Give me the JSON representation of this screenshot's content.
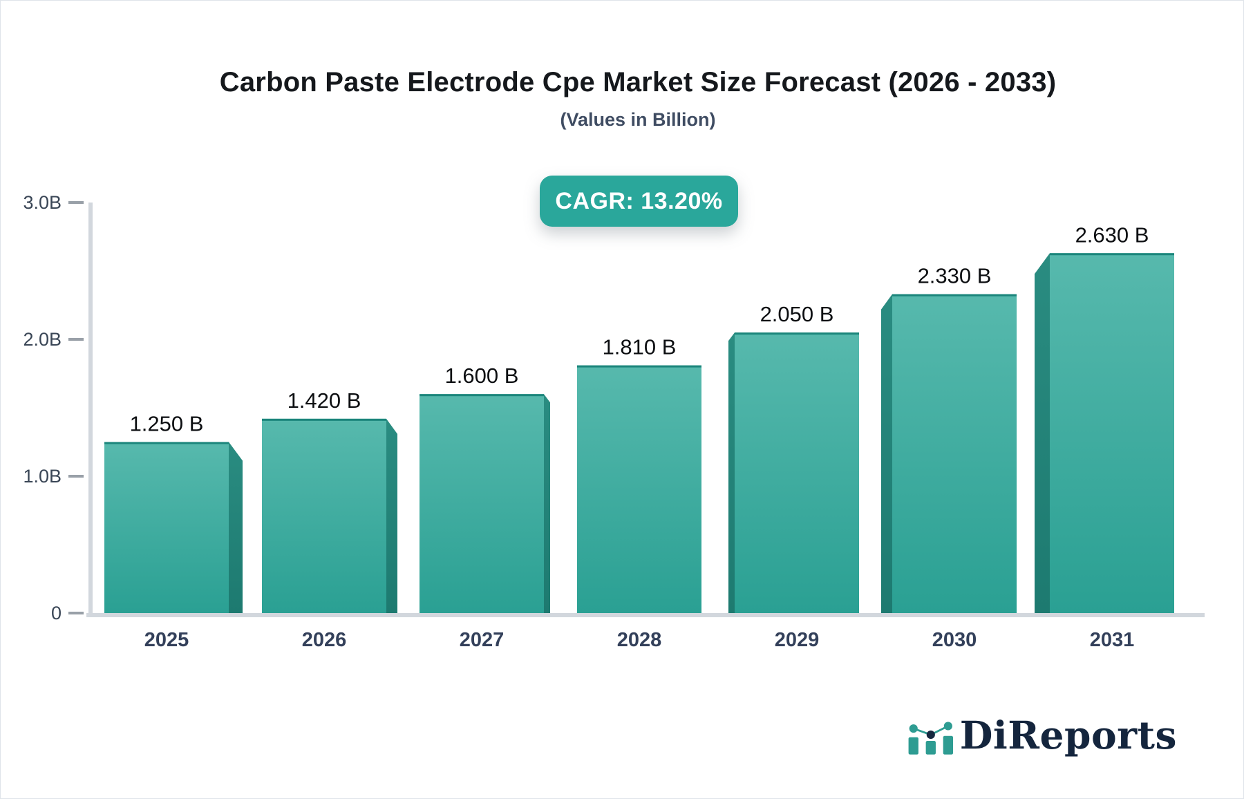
{
  "header": {
    "title": "Carbon Paste Electrode Cpe Market Size Forecast (2026 - 2033)",
    "subtitle": "(Values in Billion)"
  },
  "badge": {
    "label": "CAGR: 13.20%"
  },
  "chart_data": {
    "type": "bar",
    "title": "Carbon Paste Electrode Cpe Market Size Forecast (2026 - 2033)",
    "subtitle": "(Values in Billion)",
    "cagr_label": "CAGR: 13.20%",
    "categories": [
      "2025",
      "2026",
      "2027",
      "2028",
      "2029",
      "2030",
      "2031"
    ],
    "values": [
      1.25,
      1.42,
      1.6,
      1.81,
      2.05,
      2.33,
      2.63
    ],
    "value_labels": [
      "1.250 B",
      "1.420 B",
      "1.600 B",
      "1.810 B",
      "2.050 B",
      "2.330 B",
      "2.630 B"
    ],
    "ytick_labels": [
      "3.0B",
      "2.0B",
      "1.0B",
      "0"
    ],
    "ytick_values": [
      3.0,
      2.0,
      1.0,
      0
    ],
    "ylim": [
      0,
      3.0
    ],
    "xlabel": "",
    "ylabel": "",
    "legend": "none",
    "grid": "off",
    "colors": {
      "bar_top": "#57b9ad",
      "bar_bottom": "#2aa093",
      "bar_side_top": "#2a8c81",
      "bar_side_bottom": "#1d7a70",
      "bar_top_edge": "#1b857b",
      "axis_line": "#d2d7dd",
      "tick_dash": "#99a0a8",
      "ytick_text": "#3a4656",
      "xtick_text": "#33405a",
      "value_text": "#0c0e11",
      "accent": "#2aa79b"
    }
  },
  "logo": {
    "text": "DiReports"
  }
}
